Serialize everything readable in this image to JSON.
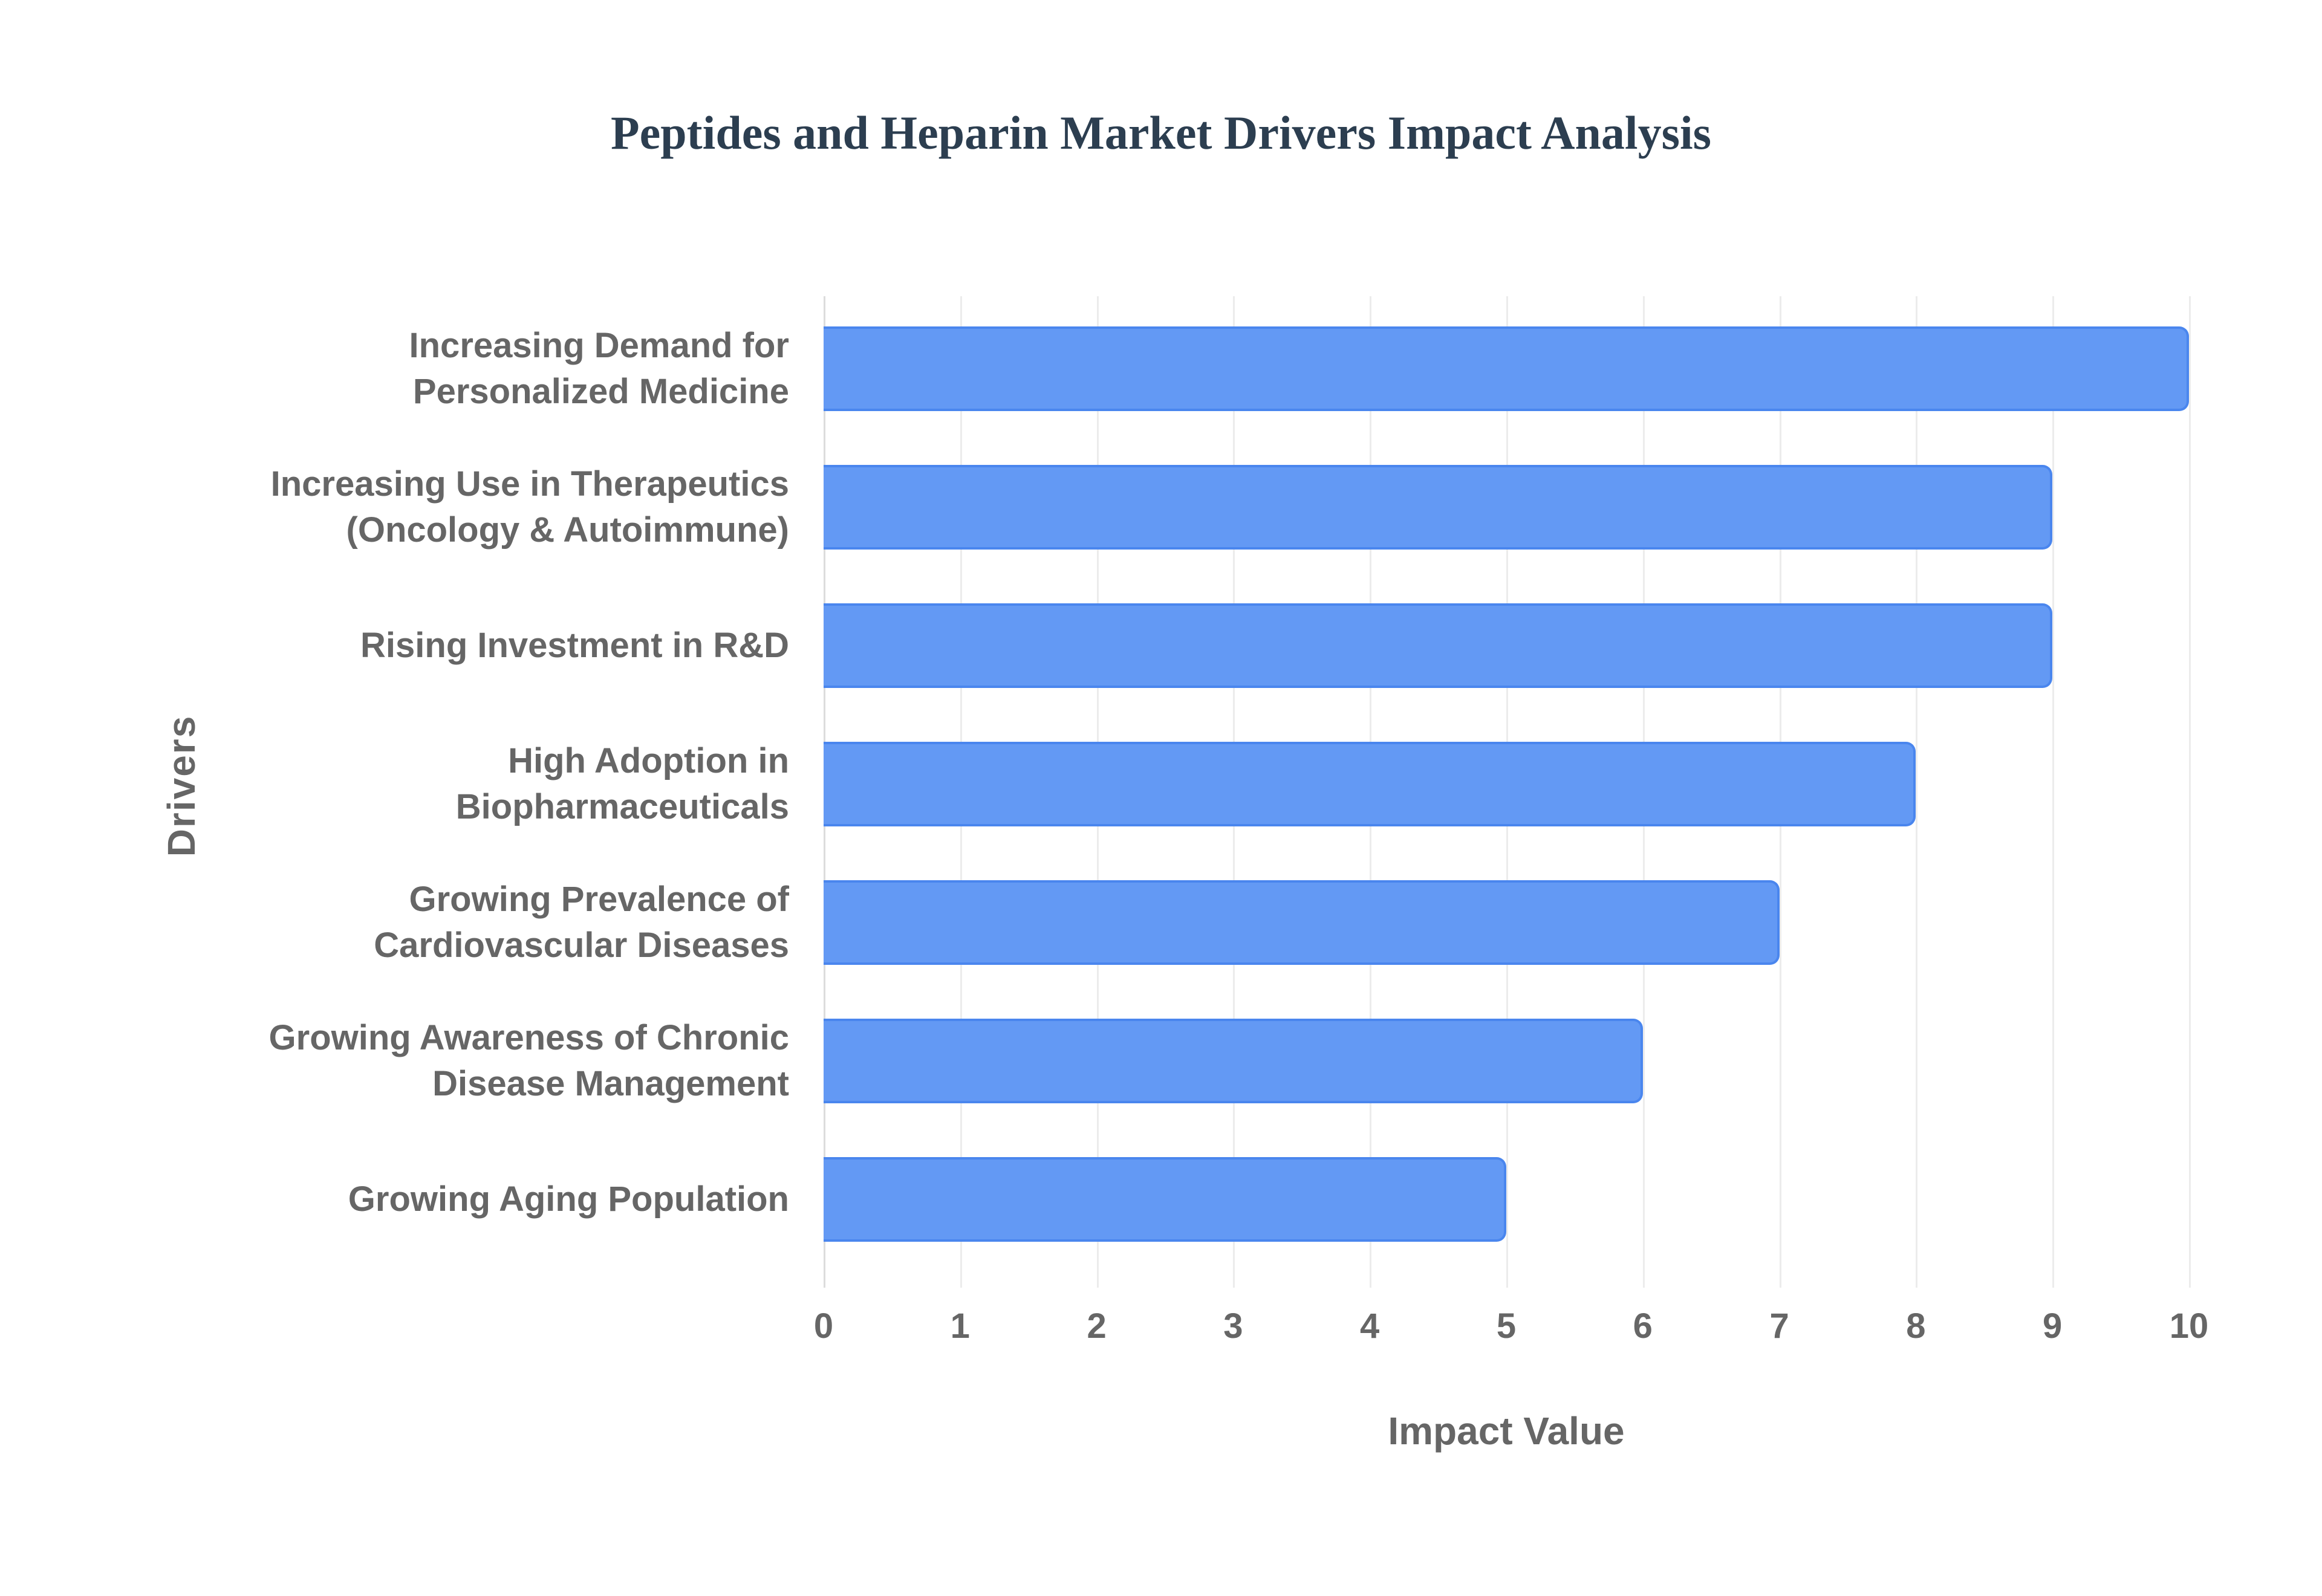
{
  "chart_data": {
    "type": "bar",
    "orientation": "horizontal",
    "title": "Peptides and Heparin Market Drivers Impact Analysis",
    "xlabel": "Impact Value",
    "ylabel": "Drivers",
    "xlim": [
      0,
      10
    ],
    "x_ticks": [
      "0",
      "1",
      "2",
      "3",
      "4",
      "5",
      "6",
      "7",
      "8",
      "9",
      "10"
    ],
    "grid": true,
    "legend": null,
    "bar_color": "#6399f4",
    "categories": [
      [
        "Increasing Demand for",
        "Personalized Medicine"
      ],
      [
        "Increasing Use in Therapeutics",
        "(Oncology & Autoimmune)"
      ],
      [
        "Rising Investment in R&D"
      ],
      [
        "High Adoption in",
        "Biopharmaceuticals"
      ],
      [
        "Growing Prevalence of",
        "Cardiovascular Diseases"
      ],
      [
        "Growing Awareness of Chronic",
        "Disease Management"
      ],
      [
        "Growing Aging Population"
      ]
    ],
    "values": [
      10,
      9,
      9,
      8,
      7,
      6,
      5
    ]
  }
}
